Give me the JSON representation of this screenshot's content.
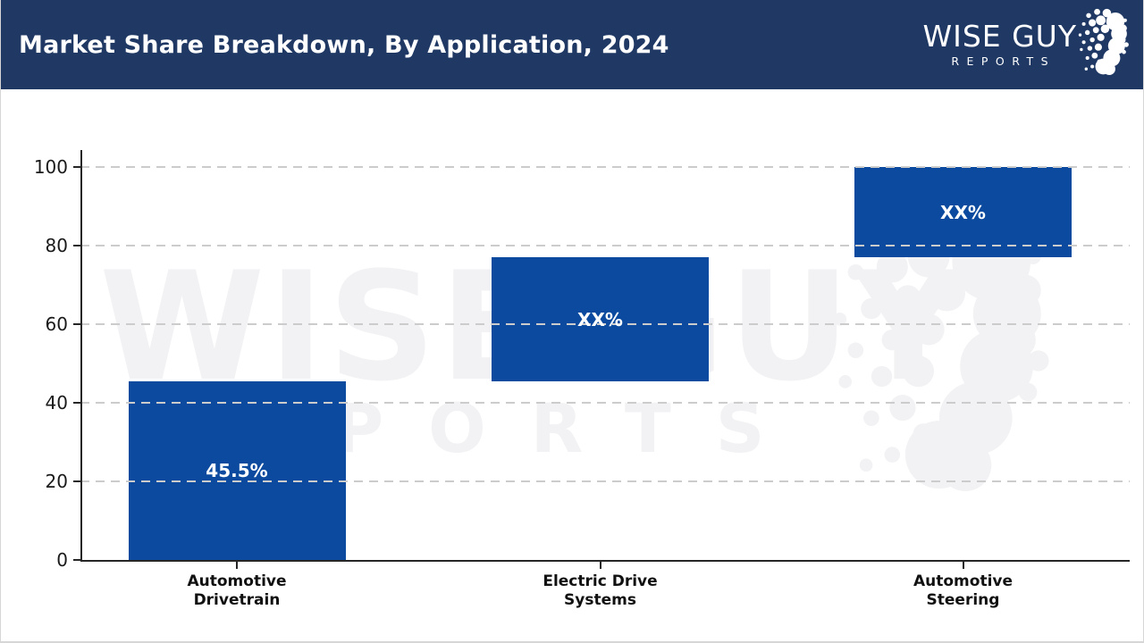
{
  "header": {
    "title": "Market Share Breakdown, By Application, 2024",
    "logo": {
      "line1": "WISE GUY",
      "line2": "REPORTS"
    }
  },
  "watermark": {
    "line1": "WISE GUY",
    "line2": "REPORTS"
  },
  "chart_data": {
    "type": "bar",
    "variant": "waterfall-floating-segments",
    "title": "Market Share Breakdown, By Application, 2024",
    "categories": [
      "Automotive Drivetrain",
      "Electric Drive Systems",
      "Automotive Steering"
    ],
    "category_lines": [
      [
        "Automotive",
        "Drivetrain"
      ],
      [
        "Electric Drive",
        "Systems"
      ],
      [
        "Automotive",
        "Steering"
      ]
    ],
    "bars": [
      {
        "category": "Automotive Drivetrain",
        "start": 0,
        "end": 45.5,
        "label": "45.5%"
      },
      {
        "category": "Electric Drive Systems",
        "start": 45.5,
        "end": 77,
        "label": "XX%"
      },
      {
        "category": "Automotive Steering",
        "start": 77,
        "end": 100,
        "label": "XX%"
      }
    ],
    "ylim": [
      0,
      100
    ],
    "yticks": [
      0,
      20,
      40,
      60,
      80,
      100
    ],
    "xlabel": "",
    "ylabel": "",
    "grid": "horizontal-dashed",
    "legend": "none"
  },
  "colors": {
    "header_bg": "#1f3864",
    "bar": "#0b4a9e",
    "grid": "#cccccc",
    "axis": "#262626",
    "bar_label": "#ffffff",
    "watermark": "#f2f2f4",
    "page_bg": "#ffffff",
    "border": "#d6d6d6"
  }
}
